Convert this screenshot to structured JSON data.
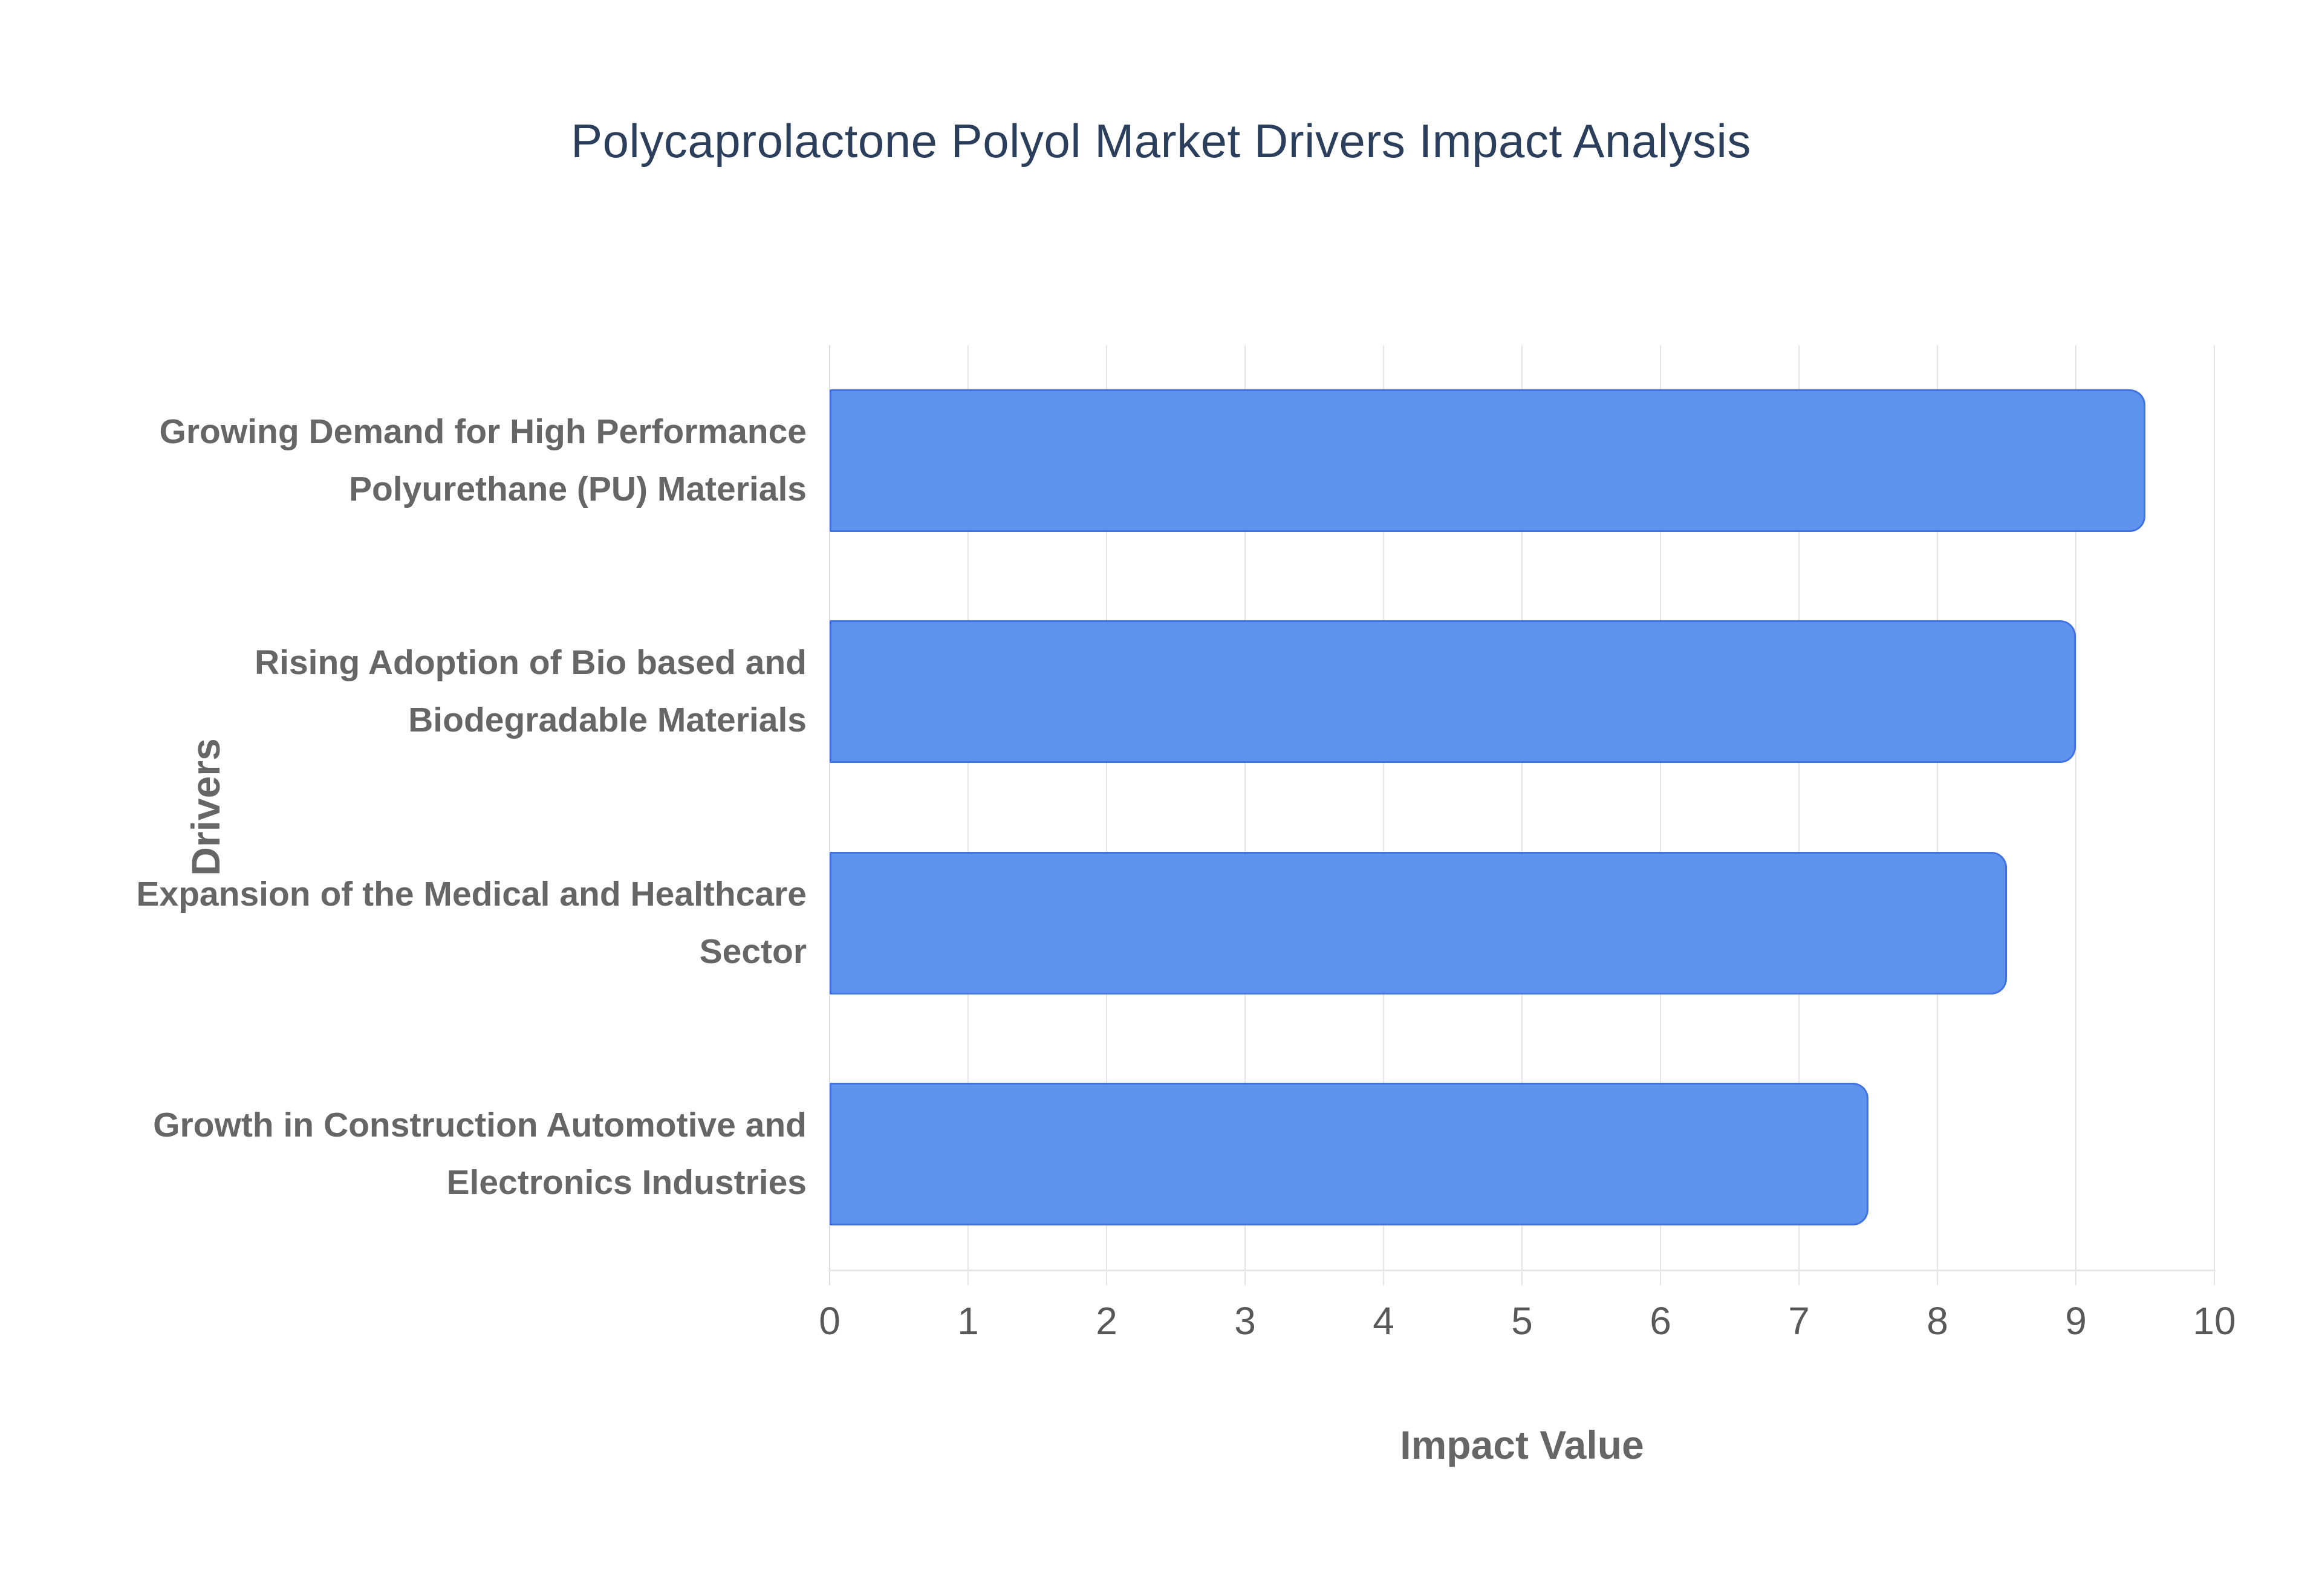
{
  "page": {
    "background": "#ffffff"
  },
  "chart_data": {
    "type": "bar",
    "orientation": "horizontal",
    "title": "Polycaprolactone Polyol Market Drivers Impact Analysis",
    "xlabel": "Impact Value",
    "ylabel": "Drivers",
    "categories": [
      "Growing Demand for High Performance Polyurethane (PU) Materials",
      "Rising Adoption of Bio based and Biodegradable Materials",
      "Expansion of the Medical and Healthcare Sector",
      "Growth in Construction Automotive and Electronics Industries"
    ],
    "values": [
      9.5,
      9,
      8.5,
      7.5
    ],
    "xlim": [
      0,
      10
    ],
    "xticks": [
      0,
      1,
      2,
      3,
      4,
      5,
      6,
      7,
      8,
      9,
      10
    ],
    "grid": true,
    "legend": false,
    "colors": {
      "bar_fill": "#5890ED",
      "bar_border": "#3B6DE0",
      "title": "#2B3F5C",
      "axis_label": "#666666",
      "category_label": "#666666",
      "tick_label": "#595959",
      "gridline": "#E4E4E4"
    }
  }
}
